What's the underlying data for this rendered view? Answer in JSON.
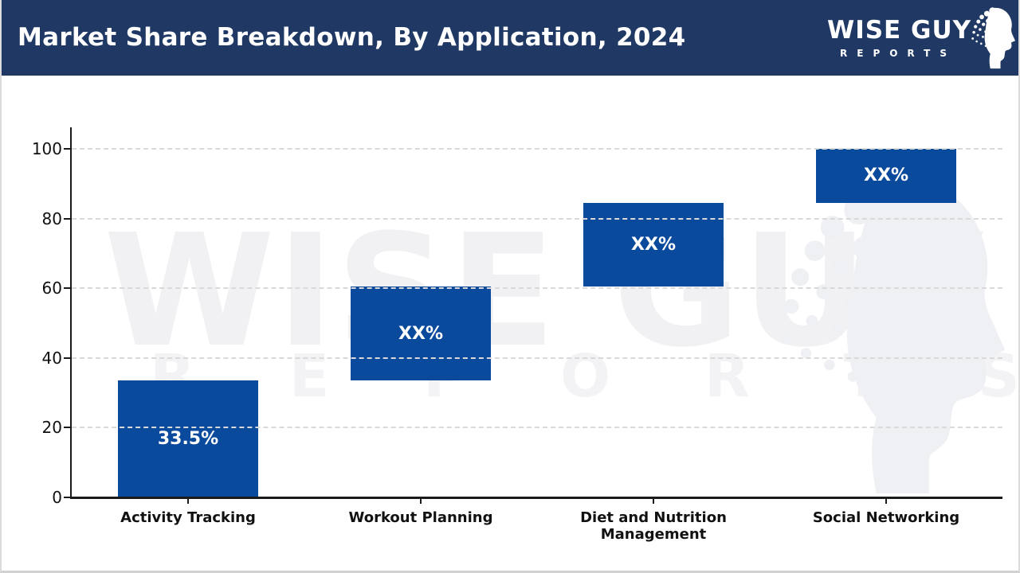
{
  "header": {
    "title": "Market Share Breakdown, By Application, 2024",
    "bg_color": "#1f3864",
    "logo": {
      "line1": "WISE GUY",
      "line2": "REPORTS"
    }
  },
  "watermark": {
    "line1": "WISE GUY",
    "line2": "R E P O R T S"
  },
  "chart_data": {
    "type": "bar",
    "subtype": "floating-stacked-segments",
    "title": "Market Share Breakdown, By Application, 2024",
    "xlabel": "",
    "ylabel": "",
    "ylim": [
      0,
      105
    ],
    "y_ticks": [
      0,
      20,
      40,
      60,
      80,
      100
    ],
    "grid": "horizontal-dashed",
    "legend": "none",
    "categories": [
      "Activity Tracking",
      "Workout Planning",
      "Diet and Nutrition Management",
      "Social Networking"
    ],
    "segments": [
      {
        "category": "Activity Tracking",
        "start": 0,
        "end": 33.5,
        "share": 33.5,
        "label": "33.5%"
      },
      {
        "category": "Workout Planning",
        "start": 33.5,
        "end": 60.5,
        "share": 27.0,
        "label": "XX%"
      },
      {
        "category": "Diet and Nutrition Management",
        "start": 60.5,
        "end": 84.5,
        "share": 24.0,
        "label": "XX%"
      },
      {
        "category": "Social Networking",
        "start": 84.5,
        "end": 100,
        "share": 15.5,
        "label": "XX%"
      }
    ],
    "colors": {
      "bar": "#0a4a9d",
      "bar_label": "#ffffff",
      "grid": "#d9d9d9",
      "axis": "#1a1a1a",
      "tick_text": "#111111"
    }
  }
}
